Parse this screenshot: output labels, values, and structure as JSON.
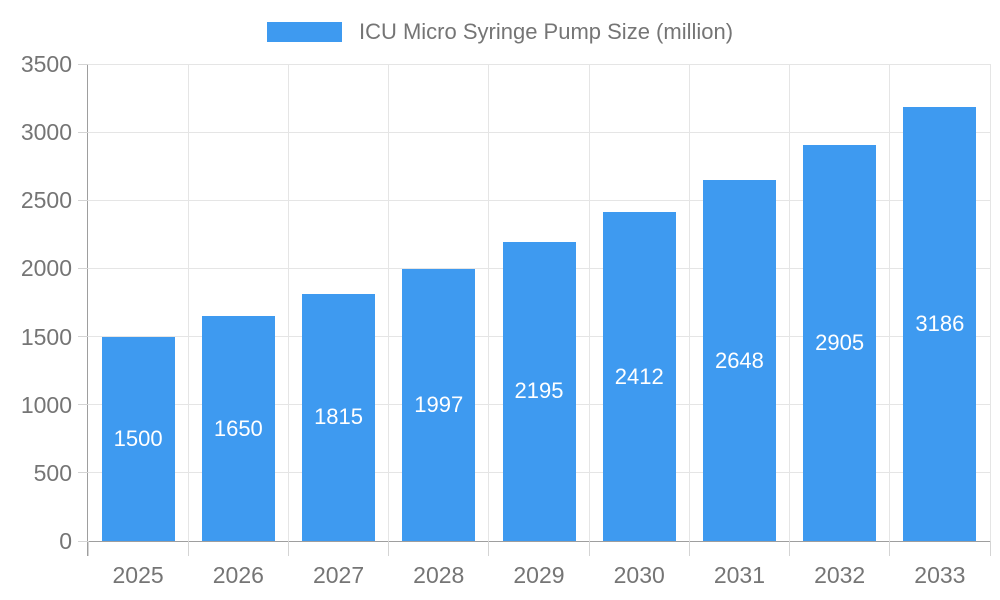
{
  "legend": {
    "label": "ICU Micro Syringe Pump Size (million)"
  },
  "chart_data": {
    "type": "bar",
    "title": "ICU Micro Syringe Pump Size (million)",
    "categories": [
      "2025",
      "2026",
      "2027",
      "2028",
      "2029",
      "2030",
      "2031",
      "2032",
      "2033"
    ],
    "values": [
      1500,
      1650,
      1815,
      1997,
      2195,
      2412,
      2648,
      2905,
      3186
    ],
    "xlabel": "",
    "ylabel": "",
    "ylim": [
      0,
      3500
    ],
    "ytick_step": 500,
    "grid": true,
    "legend_position": "top-center",
    "value_labels": "inside-center-white"
  },
  "colors": {
    "bar": "#3E9AF0",
    "axis_text": "#757575",
    "grid_line": "#e5e5e5",
    "axis_line": "#9e9e9e",
    "tick": "#d4d4d4",
    "value_label": "#ffffff",
    "background": "#ffffff"
  }
}
